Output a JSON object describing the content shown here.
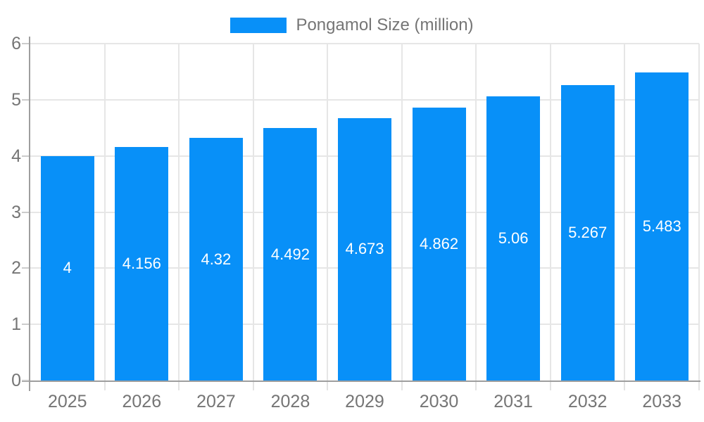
{
  "chart_data": {
    "type": "bar",
    "title": "",
    "legend_position": "top",
    "categories": [
      "2025",
      "2026",
      "2027",
      "2028",
      "2029",
      "2030",
      "2031",
      "2032",
      "2033"
    ],
    "series": [
      {
        "name": "Pongamol Size (million)",
        "values": [
          4,
          4.156,
          4.32,
          4.492,
          4.673,
          4.862,
          5.06,
          5.267,
          5.483
        ],
        "value_labels": [
          "4",
          "4.156",
          "4.32",
          "4.492",
          "4.673",
          "4.862",
          "5.06",
          "5.267",
          "5.483"
        ]
      }
    ],
    "ylim": [
      0,
      6
    ],
    "yticks": [
      "0",
      "1",
      "2",
      "3",
      "4",
      "5",
      "6"
    ],
    "grid": true,
    "value_label_position": "center-of-bar",
    "colors": {
      "bar": "#0890f8",
      "axis_line": "#9e9e9e",
      "gridline": "#e6e6e6",
      "y_tick": "#cccccc",
      "x_tick": "#e3e3e3",
      "axis_text": "#757575",
      "bar_label_text": "#ffffff",
      "background": "#ffffff"
    }
  }
}
